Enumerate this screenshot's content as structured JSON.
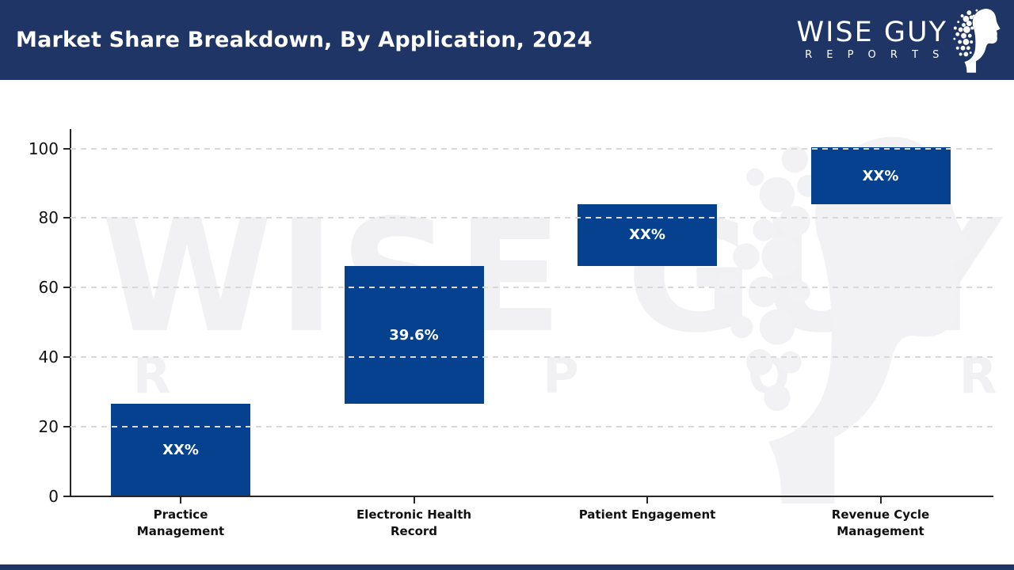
{
  "header": {
    "title": "Market Share Breakdown, By Application, 2024",
    "logo": {
      "brand_line1": "WISE GUY",
      "brand_line2": "R E P O R T S"
    }
  },
  "watermark": {
    "line1": "WISE GUY",
    "line2": "R E P O R T S"
  },
  "colors": {
    "header_bg": "#1f3565",
    "bar_blue": "#06418f",
    "gridline": "#d9d9d9",
    "axis": "#262626",
    "watermark": "#f1f1f3"
  },
  "chart_data": {
    "type": "bar",
    "subtype": "floating-waterfall",
    "title": "Market Share Breakdown, By Application, 2024",
    "categories": [
      "Practice\nManagement",
      "Electronic Health\nRecord",
      "Patient Engagement",
      "Revenue Cycle\nManagement"
    ],
    "segments": [
      {
        "category": "Practice Management",
        "label": "XX%",
        "start": 0,
        "end": 26.6,
        "value_shown": "XX%"
      },
      {
        "category": "Electronic Health Record",
        "label": "39.6%",
        "start": 26.6,
        "end": 66.2,
        "value_shown": "39.6%"
      },
      {
        "category": "Patient Engagement",
        "label": "XX%",
        "start": 66.2,
        "end": 84.0,
        "value_shown": "XX%"
      },
      {
        "category": "Revenue Cycle Management",
        "label": "XX%",
        "start": 84.0,
        "end": 100.3,
        "value_shown": "XX%"
      }
    ],
    "yticks": [
      0,
      20,
      40,
      60,
      80,
      100
    ],
    "ylim": [
      0,
      105
    ],
    "xlabel": "",
    "ylabel": "",
    "grid": "horizontal-dashed",
    "legend": "none"
  }
}
